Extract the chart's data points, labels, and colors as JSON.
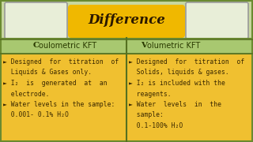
{
  "title": "Difference",
  "title_bg": "#F0B800",
  "overall_bg": "#C8D8A0",
  "header_bg": "#A8C870",
  "content_bg": "#F0C030",
  "border_color": "#6A8A30",
  "divider_color": "#557020",
  "left_header": "Coulometric KFT",
  "right_header": "Volumetric KFT",
  "left_header_bold_char": "C",
  "right_header_bold_char": "V",
  "text_color": "#3A2800",
  "header_text_color": "#2A3A00",
  "title_text_color": "#2A1800",
  "figsize": [
    3.2,
    1.8
  ],
  "dpi": 100,
  "img_box_color": "#E8EED0",
  "img_border_color": "#888888",
  "left_lines": [
    "► Designed  for  titration  of",
    "  Liquids & Gases only.",
    "► I₂  is  generated  at  an",
    "  electrode.",
    "► Water levels in the sample:",
    "  0.001- 0.1% H₂O"
  ],
  "right_lines": [
    "► Designed  for  titration  of",
    "  Solids, liquids & gases.",
    "► I₂ is included with the",
    "  reagents.",
    "► Water  levels  in  the",
    "  sample:",
    "  0.1-100% H₂O"
  ]
}
